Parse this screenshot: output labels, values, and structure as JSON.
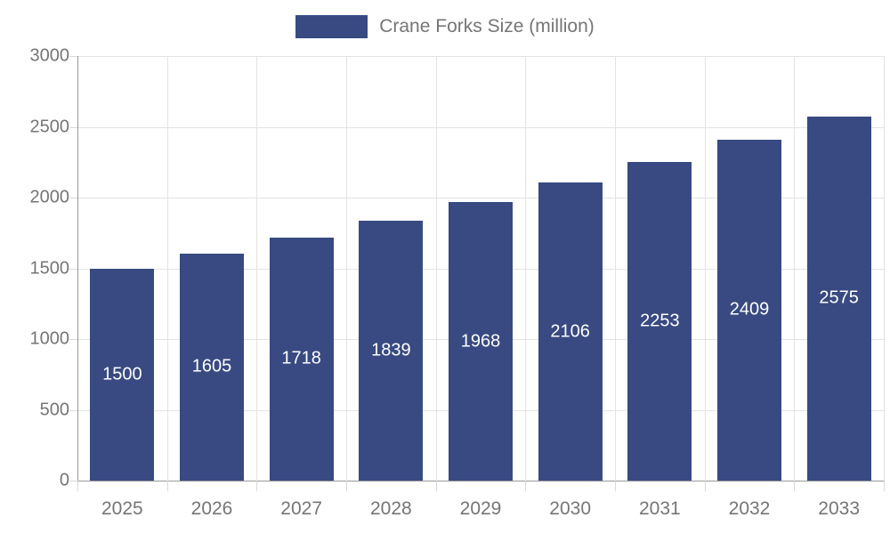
{
  "legend": {
    "label": "Crane Forks Size (million)"
  },
  "chart_data": {
    "type": "bar",
    "title": "Crane Forks Size (million)",
    "categories": [
      "2025",
      "2026",
      "2027",
      "2028",
      "2029",
      "2030",
      "2031",
      "2032",
      "2033"
    ],
    "values": [
      1500,
      1605,
      1718,
      1839,
      1968,
      2106,
      2253,
      2409,
      2575
    ],
    "series_name": "Crane Forks Size (million)",
    "xlabel": "",
    "ylabel": "",
    "ylim": [
      0,
      3000
    ],
    "yticks": [
      0,
      500,
      1000,
      1500,
      2000,
      2500,
      3000
    ],
    "grid": true,
    "legend_position": "top-center",
    "bar_labels_visible": true,
    "colors": {
      "bar": "#384a81",
      "bar_label_text": "#ffffff",
      "axis_text": "#757575",
      "grid_line": "#e3e3e3",
      "axis_line": "#999999",
      "tick_mark": "#d9d9d9"
    }
  }
}
